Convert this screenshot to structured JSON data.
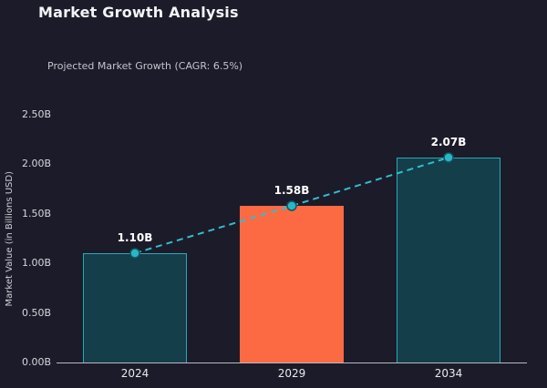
{
  "header": {
    "title": "Market Growth Analysis",
    "subtitle": "Projected Market Growth (CAGR: 6.5%)"
  },
  "colors": {
    "background": "#1b1b2a",
    "teal_bar_fill": "#143e4a",
    "teal_bar_border": "#2aa9b8",
    "orange_bar": "#fb6a42",
    "trend_line": "#35bccb",
    "marker_fill": "#2cb5c4",
    "marker_edge": "#0f5562",
    "axis_line": "#b9b9c4"
  },
  "chart_data": {
    "type": "bar",
    "title": "Market Growth Analysis",
    "subtitle": "Projected Market Growth (CAGR: 6.5%)",
    "categories": [
      "2024",
      "2029",
      "2034"
    ],
    "values": [
      1.1,
      1.58,
      2.07
    ],
    "data_labels": [
      "1.10B",
      "1.58B",
      "2.07B"
    ],
    "bar_colors": [
      "#143e4a",
      "#fb6a42",
      "#143e4a"
    ],
    "bar_border_colors": [
      "#2aa9b8",
      "#fb6a42",
      "#2aa9b8"
    ],
    "line": {
      "type": "dashed",
      "color": "#35bccb",
      "marker_color": "#2cb5c4",
      "marker_edge": "#0f5562"
    },
    "xlabel": "",
    "ylabel": "Market Value (in Billions USD)",
    "ylim": [
      0,
      2.5
    ],
    "yticks": [
      {
        "value": 0.0,
        "label": "0.00B"
      },
      {
        "value": 0.5,
        "label": "0.50B"
      },
      {
        "value": 1.0,
        "label": "1.00B"
      },
      {
        "value": 1.5,
        "label": "1.50B"
      },
      {
        "value": 2.0,
        "label": "2.00B"
      },
      {
        "value": 2.5,
        "label": "2.50B"
      }
    ],
    "grid": false,
    "legend": false
  }
}
